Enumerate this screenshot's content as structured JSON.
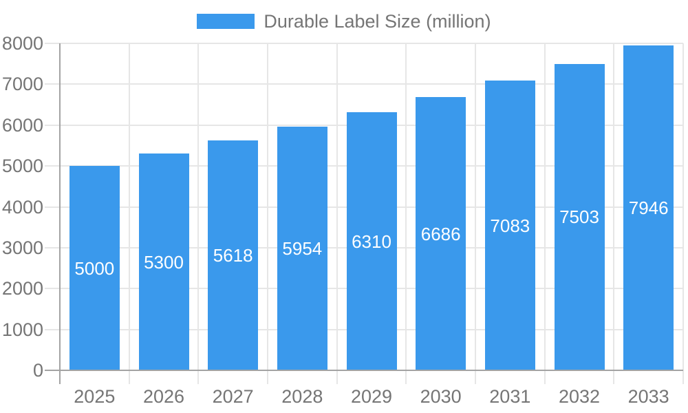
{
  "colors": {
    "background": "#ffffff",
    "bar": "#3a99ec",
    "grid": "#e6e6e6",
    "axis": "#a3a3a3",
    "tick_text": "#757575",
    "value_label_text": "#ffffff"
  },
  "chart_data": {
    "type": "bar",
    "title": "",
    "legend": {
      "label": "Durable Label Size (million)",
      "position": "top"
    },
    "categories": [
      "2025",
      "2026",
      "2027",
      "2028",
      "2029",
      "2030",
      "2031",
      "2032",
      "2033"
    ],
    "values": [
      5000,
      5300,
      5618,
      5954,
      6310,
      6686,
      7083,
      7503,
      7946
    ],
    "value_labels": [
      "5000",
      "5300",
      "5618",
      "5954",
      "6310",
      "6686",
      "7083",
      "7503",
      "7946"
    ],
    "xlabel": "",
    "ylabel": "",
    "ylim": [
      0,
      8000
    ],
    "yticks": [
      0,
      1000,
      2000,
      3000,
      4000,
      5000,
      6000,
      7000,
      8000
    ],
    "ytick_labels": [
      "0",
      "1000",
      "2000",
      "3000",
      "4000",
      "5000",
      "6000",
      "7000",
      "8000"
    ],
    "grid": true,
    "value_labels_shown": true
  }
}
